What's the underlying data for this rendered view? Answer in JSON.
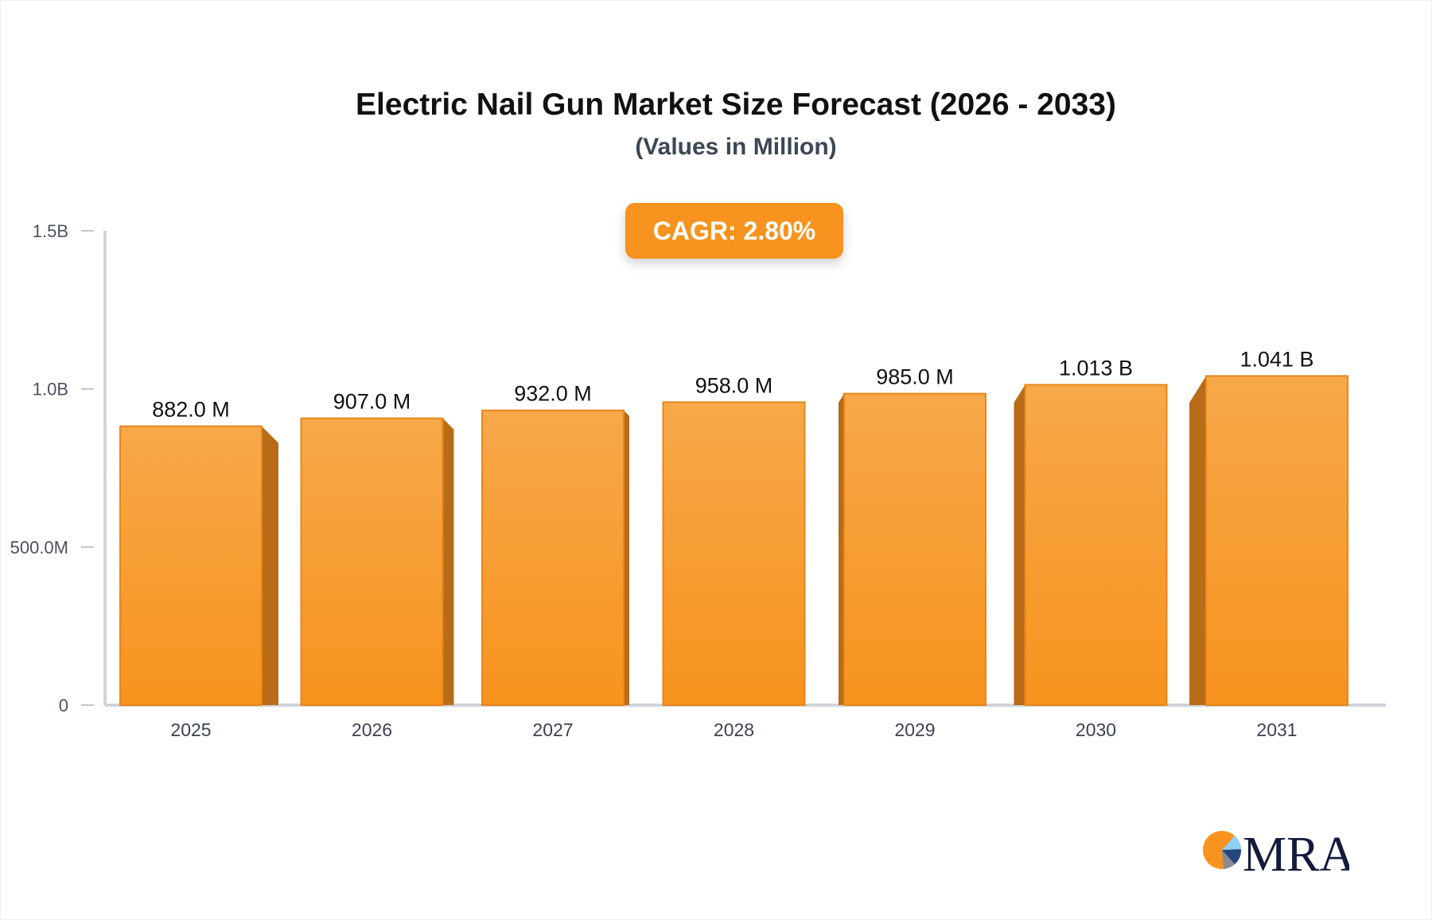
{
  "chart_data": {
    "type": "bar",
    "title": "Electric Nail Gun Market Size Forecast (2026 - 2033)",
    "subtitle": "(Values in Million)",
    "annotation": "CAGR: 2.80%",
    "categories": [
      "2025",
      "2026",
      "2027",
      "2028",
      "2029",
      "2030",
      "2031"
    ],
    "values": [
      882.0,
      907.0,
      932.0,
      958.0,
      985.0,
      1013,
      1041
    ],
    "value_unit": "Million",
    "data_labels": [
      "882.0 M",
      "907.0 M",
      "932.0 M",
      "958.0 M",
      "985.0 M",
      "1.013 B",
      "1.041 B"
    ],
    "ylim": [
      0,
      1500
    ],
    "yticks": [
      0,
      500,
      1000,
      1500
    ],
    "ytick_labels": [
      "0",
      "500.0M",
      "1.0B",
      "1.5B"
    ],
    "xlabel": "",
    "ylabel": "",
    "grid": false,
    "legend": "none",
    "colors": {
      "bar_top": "#f7a84a",
      "bar_bottom": "#f7931e",
      "bar_side": "#b86c18",
      "badge": "#f7931e",
      "axis": "#d0d3da"
    }
  },
  "logo": {
    "text": "MRA"
  }
}
